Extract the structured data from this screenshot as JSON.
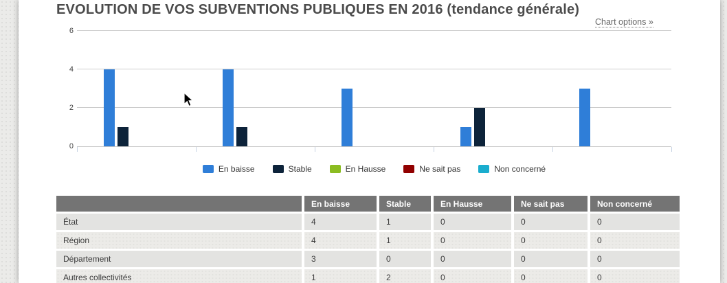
{
  "page": {
    "title": "EVOLUTION DE VOS SUBVENTIONS PUBLIQUES EN 2016 (tendance générale)",
    "chart_options_label": "Chart options »"
  },
  "chart_data": {
    "type": "bar",
    "title": "EVOLUTION DE VOS SUBVENTIONS PUBLIQUES EN 2016 (tendance générale)",
    "categories": [
      "État",
      "Région",
      "Département",
      "Autres collectivités",
      ""
    ],
    "series": [
      {
        "name": "En baisse",
        "color": "#2f7ed8",
        "values": [
          4,
          4,
          3,
          1,
          3
        ]
      },
      {
        "name": "Stable",
        "color": "#0d233a",
        "values": [
          1,
          1,
          0,
          2,
          0
        ]
      },
      {
        "name": "En Hausse",
        "color": "#8bbc21",
        "values": [
          0,
          0,
          0,
          0,
          0
        ]
      },
      {
        "name": "Ne sait pas",
        "color": "#910000",
        "values": [
          0,
          0,
          0,
          0,
          0
        ]
      },
      {
        "name": "Non concerné",
        "color": "#1aadce",
        "values": [
          0,
          0,
          0,
          0,
          0
        ]
      }
    ],
    "xlabel": "",
    "ylabel": "",
    "ylim": [
      0,
      6
    ],
    "yticks": [
      0,
      2,
      4,
      6
    ],
    "grid": true,
    "legend_position": "bottom-center"
  },
  "table": {
    "columns": [
      "",
      "En baisse",
      "Stable",
      "En Hausse",
      "Ne sait pas",
      "Non concerné"
    ],
    "rows": [
      {
        "label": "État",
        "values": [
          4,
          1,
          0,
          0,
          0
        ]
      },
      {
        "label": "Région",
        "values": [
          4,
          1,
          0,
          0,
          0
        ]
      },
      {
        "label": "Département",
        "values": [
          3,
          0,
          0,
          0,
          0
        ]
      },
      {
        "label": "Autres collectivités",
        "values": [
          1,
          2,
          0,
          0,
          0
        ]
      }
    ]
  }
}
